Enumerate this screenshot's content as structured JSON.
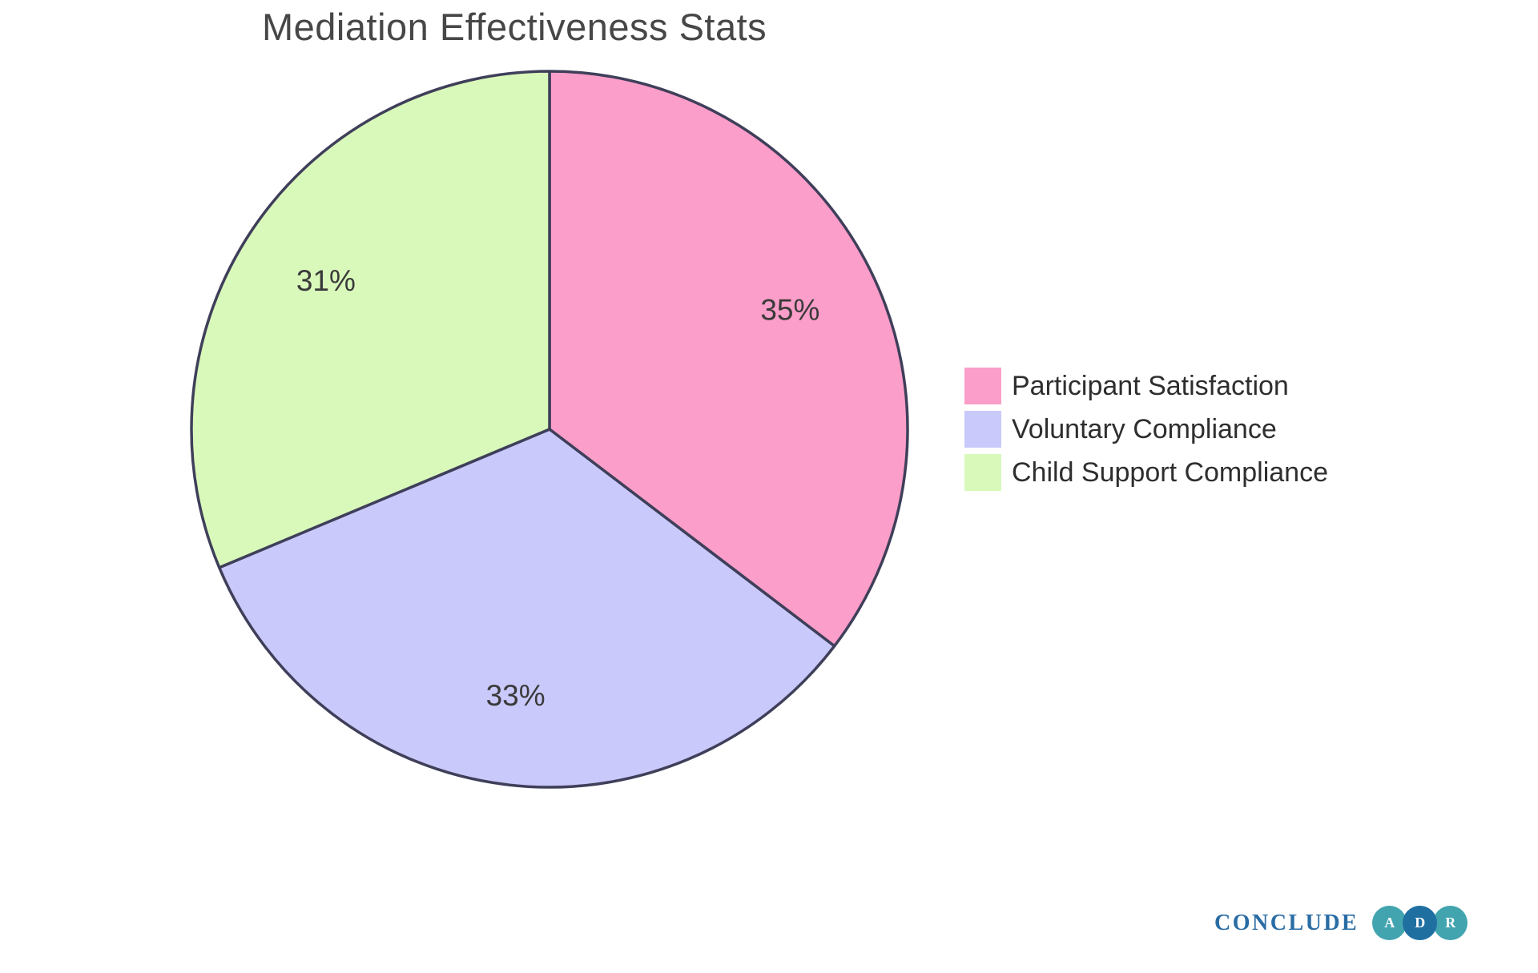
{
  "title": "Mediation Effectiveness Stats",
  "colors": {
    "background": "#FFFFFF",
    "slice_border": "#3F3F5A",
    "title_text": "#474747",
    "percent_label_text": "#3A3A3A",
    "legend_text": "#2E2E2E",
    "logo_wordmark_blue": "#2A6CA4",
    "logo_teal_circle": "#42A4AF",
    "logo_dark_blue_circle": "#1F6FA1",
    "logo_letter_white": "#FFFFFF"
  },
  "chart_data": {
    "type": "pie",
    "title": "Mediation Effectiveness Stats",
    "slices": [
      {
        "label": "Participant Satisfaction",
        "value": 35,
        "display": "35%",
        "color": "#FB9EC9"
      },
      {
        "label": "Voluntary Compliance",
        "value": 33,
        "display": "33%",
        "color": "#C9C9FB"
      },
      {
        "label": "Child Support Compliance",
        "value": 31,
        "display": "31%",
        "color": "#D9F9BB"
      }
    ],
    "start_angle_deg": 0,
    "direction": "clockwise",
    "legend_position": "right",
    "label_radius_fraction": 0.75,
    "grid": false
  },
  "logo": {
    "wordmark": "CONCLUDE",
    "badges": [
      "A",
      "D",
      "R"
    ]
  }
}
